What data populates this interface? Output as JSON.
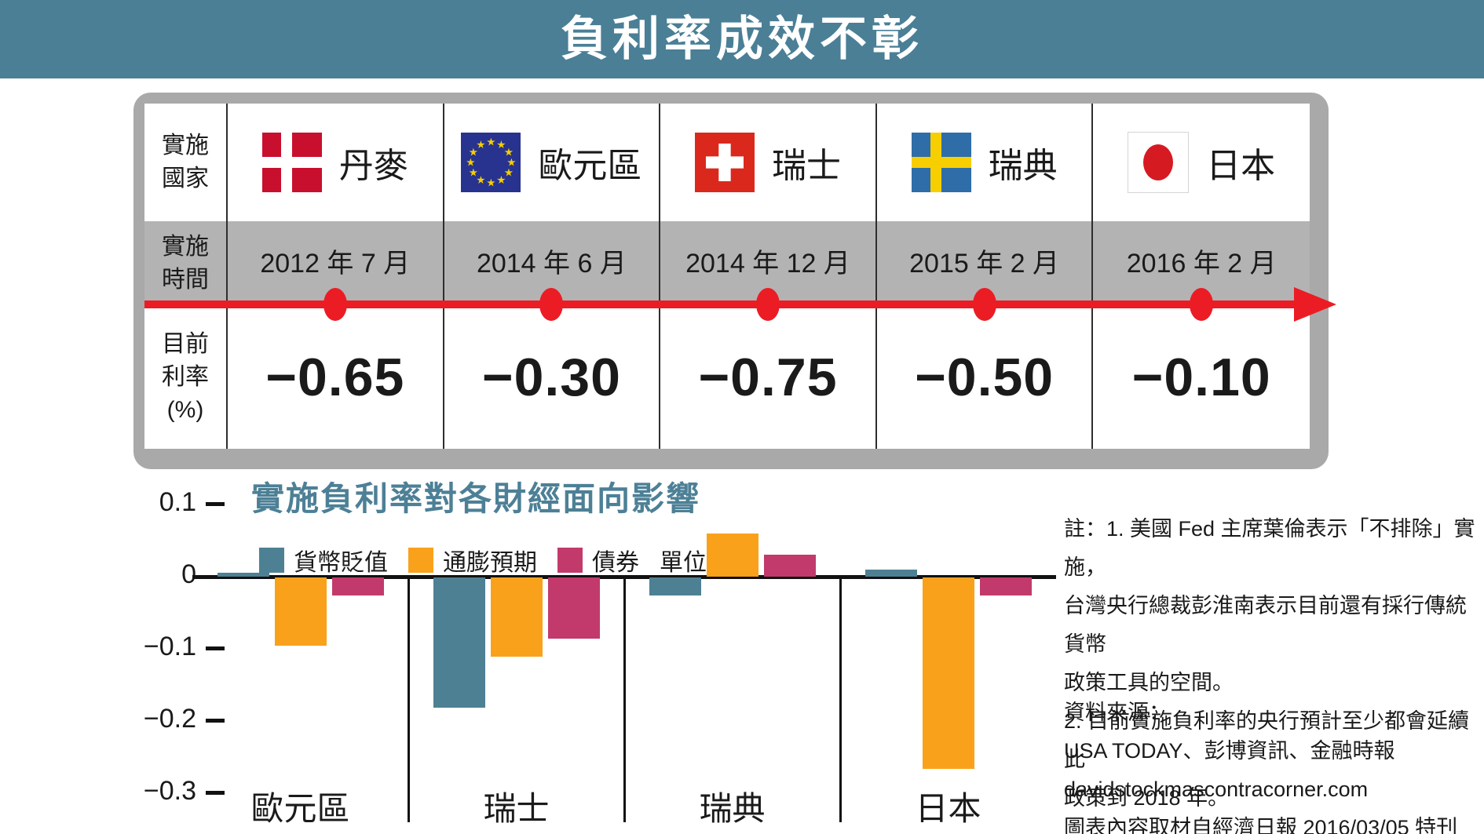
{
  "header": {
    "title": "負利率成效不彰"
  },
  "colors": {
    "header_bg": "#4A7F96",
    "chart_title": "#4D8096",
    "table_frame": "#A9A9A9",
    "row_gray": "#B3B3B3",
    "timeline_red": "#EC1C24",
    "series_currency": "#4E8094",
    "series_inflation": "#F9A11B",
    "series_bond": "#C23A6B"
  },
  "table": {
    "row_labels": {
      "country": "實施\n國家",
      "time": "實施\n時間",
      "rate": "目前\n利率\n(%)"
    },
    "columns": [
      {
        "name": "丹麥",
        "flag": "denmark-flag",
        "date": "2012 年 7 月",
        "rate": "−0.65"
      },
      {
        "name": "歐元區",
        "flag": "eu-flag",
        "date": "2014 年 6 月",
        "rate": "−0.30"
      },
      {
        "name": "瑞士",
        "flag": "switzerland-flag",
        "date": "2014 年 12 月",
        "rate": "−0.75"
      },
      {
        "name": "瑞典",
        "flag": "sweden-flag",
        "date": "2015 年 2 月",
        "rate": "−0.50"
      },
      {
        "name": "日本",
        "flag": "japan-flag",
        "date": "2016 年 2 月",
        "rate": "−0.10"
      }
    ]
  },
  "chart_data": {
    "type": "bar",
    "title": "實施負利率對各財經面向影響",
    "unit_label": "單位：%",
    "categories": [
      "歐元區",
      "瑞士",
      "瑞典",
      "日本"
    ],
    "series": [
      {
        "name": "貨幣貶值",
        "color": "#4E8094",
        "values": [
          0.005,
          -0.18,
          -0.025,
          0.01
        ]
      },
      {
        "name": "通膨預期",
        "color": "#F9A11B",
        "values": [
          -0.095,
          -0.11,
          0.06,
          -0.265
        ]
      },
      {
        "name": "債券",
        "color": "#C23A6B",
        "values": [
          -0.025,
          -0.085,
          0.03,
          -0.025
        ]
      }
    ],
    "ylim": [
      -0.3,
      0.1
    ],
    "yticks": [
      {
        "label": "0.1",
        "value": 0.1
      },
      {
        "label": "0",
        "value": 0
      },
      {
        "label": "−0.1",
        "value": -0.1
      },
      {
        "label": "−0.2",
        "value": -0.2
      },
      {
        "label": "−0.3",
        "value": -0.3
      }
    ],
    "legend_position": "top-left",
    "grid": false
  },
  "notes": {
    "text": "註：1. 美國 Fed 主席葉倫表示「不排除」實施，\n台灣央行總裁彭淮南表示目前還有採行傳統貨幣\n政策工具的空間。\n2. 目前實施負利率的央行預計至少都會延續此\n政策到 2018 年。"
  },
  "source": {
    "text": "資料來源：\nUSA TODAY、彭博資訊、金融時報\ndavidstockmascontracorner.com\n圖表內容取材自經濟日報 2016/03/05 特刊"
  }
}
